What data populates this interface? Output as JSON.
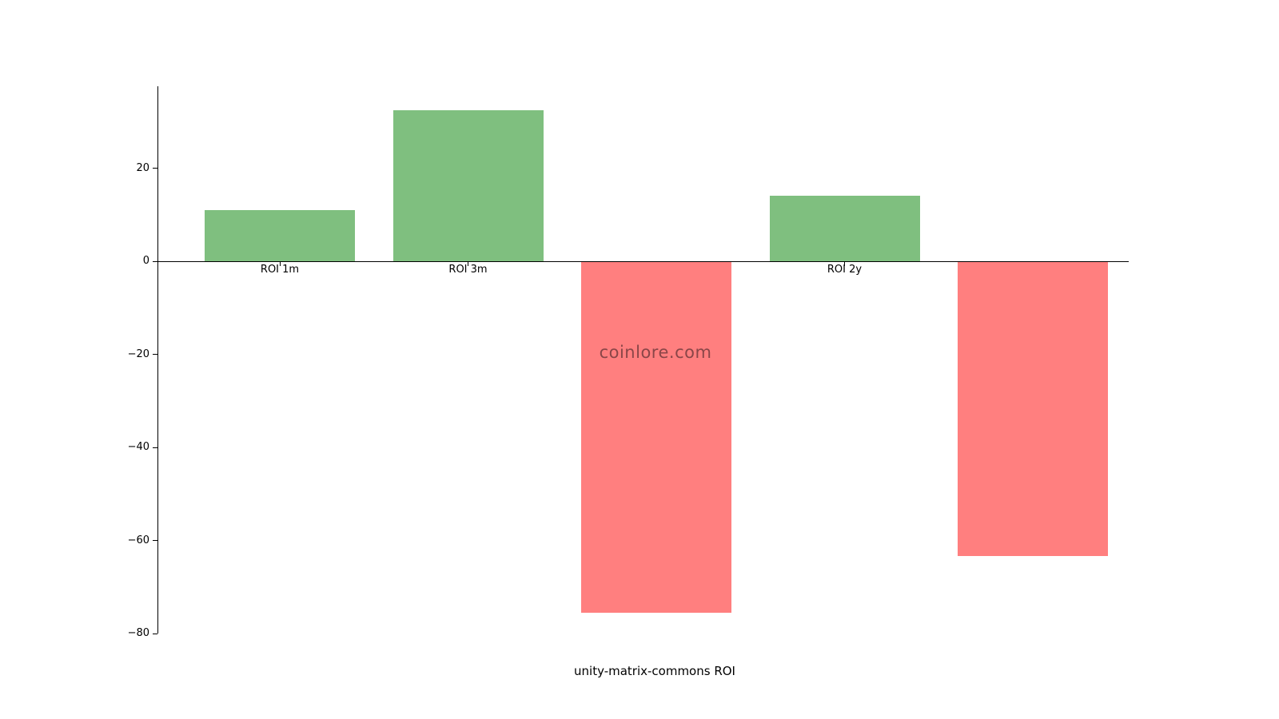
{
  "watermark": {
    "text": "coinlore.com",
    "color": "#8a4648"
  },
  "colors": {
    "positive_bar": "#7fbf7f",
    "negative_bar": "#ff7f7f",
    "axis": "#000000",
    "text": "#000000"
  },
  "chart_data": {
    "type": "bar",
    "title": "unity-matrix-commons ROI",
    "categories": [
      "ROI 1m",
      "ROI 3m",
      "",
      "ROI 2y",
      ""
    ],
    "values": [
      11,
      32.4,
      -75.5,
      14,
      -63.3
    ],
    "bar_color_rule": "green if positive, red if negative",
    "xlabel": "",
    "ylabel": "",
    "ylim": [
      -80,
      37.5
    ],
    "yticks": [
      20,
      0,
      -20,
      -40,
      -60,
      -80
    ],
    "ytick_labels": [
      "20",
      "0",
      "−20",
      "−40",
      "−60",
      "−80"
    ],
    "grid": false,
    "legend": "none",
    "note": "x tick labels of the two negative bars are hidden behind the bars; watermark coinlore.com overlays the middle negative bar"
  }
}
